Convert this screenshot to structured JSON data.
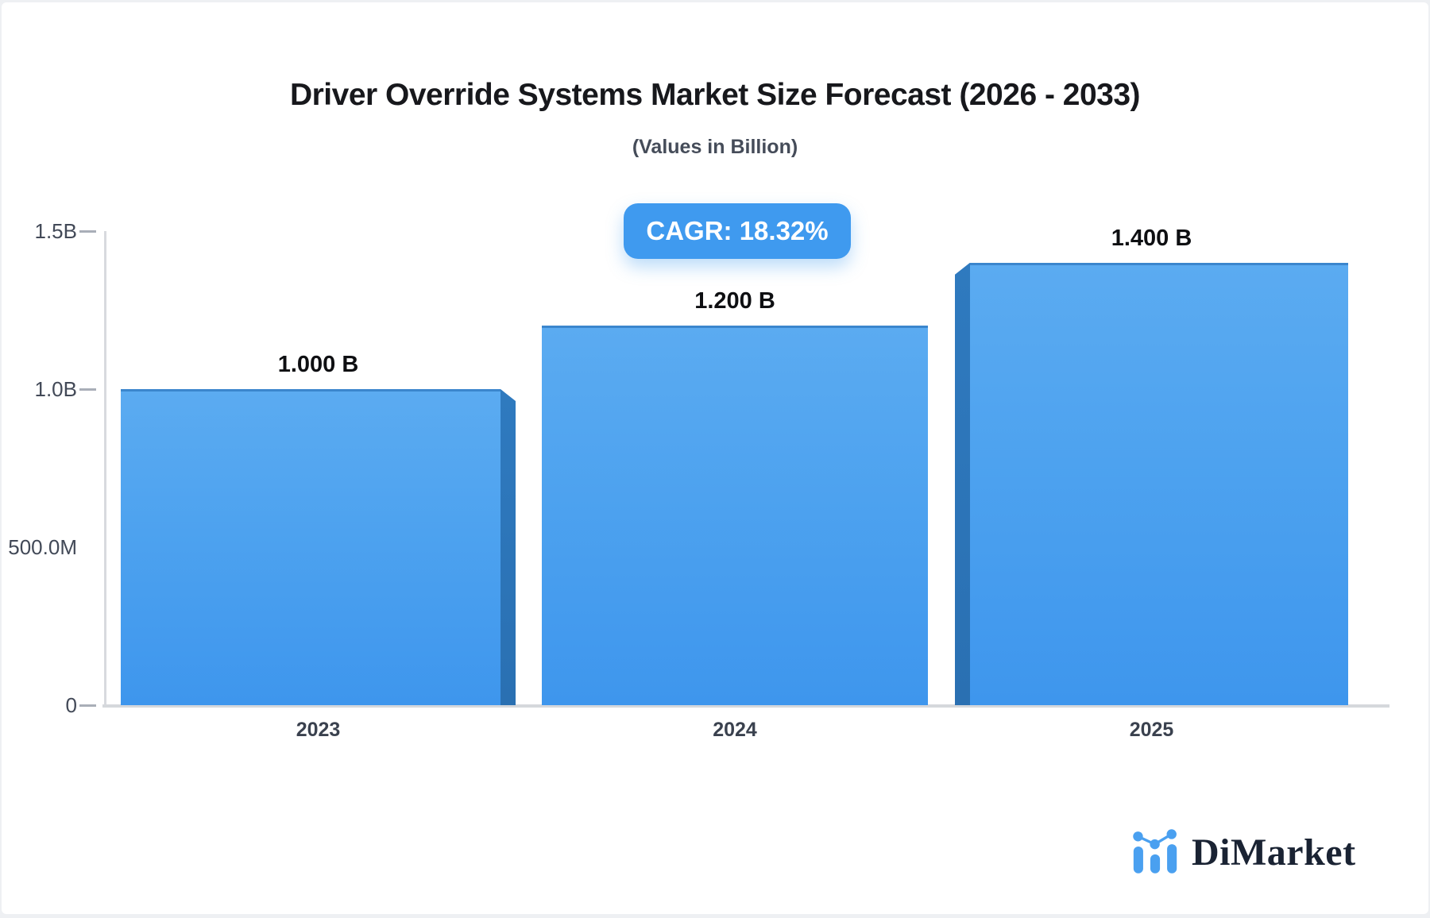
{
  "page": {
    "background": "#eef0f3",
    "card_background": "#ffffff"
  },
  "header": {
    "title": "Driver Override Systems Market Size Forecast (2026 - 2033)",
    "subtitle": "(Values in Billion)"
  },
  "badge": {
    "label": "CAGR: 18.32%",
    "background": "#3f9aef",
    "text_color": "#ffffff"
  },
  "chart_data": {
    "type": "bar",
    "title": "Driver Override Systems Market Size Forecast (2026 - 2033)",
    "subtitle": "(Values in Billion)",
    "unit": "Billion",
    "categories": [
      "2023",
      "2024",
      "2025"
    ],
    "values": [
      1.0,
      1.2,
      1.4
    ],
    "value_labels": [
      "1.000 B",
      "1.200 B",
      "1.400 B"
    ],
    "cagr": "18.32%",
    "xlabel": "",
    "ylabel": "",
    "ylim": [
      0,
      1.5
    ],
    "yticks": [
      {
        "label": "1.5B",
        "value": 1.5,
        "dash": true
      },
      {
        "label": "1.0B",
        "value": 1.0,
        "dash": true
      },
      {
        "label": "500.0M",
        "value": 0.5,
        "dash": false
      },
      {
        "label": "0",
        "value": 0.0,
        "dash": true
      }
    ],
    "grid": false,
    "legend": false,
    "bar_color_top": "#5babf1",
    "bar_color_bottom": "#3e96ed",
    "bar_side_color": "#2e78bb"
  },
  "logo": {
    "text": "DiMarket",
    "icon": "bar-chart-logo-icon",
    "icon_color": "#4aa0f0",
    "text_color": "#1a2333"
  }
}
